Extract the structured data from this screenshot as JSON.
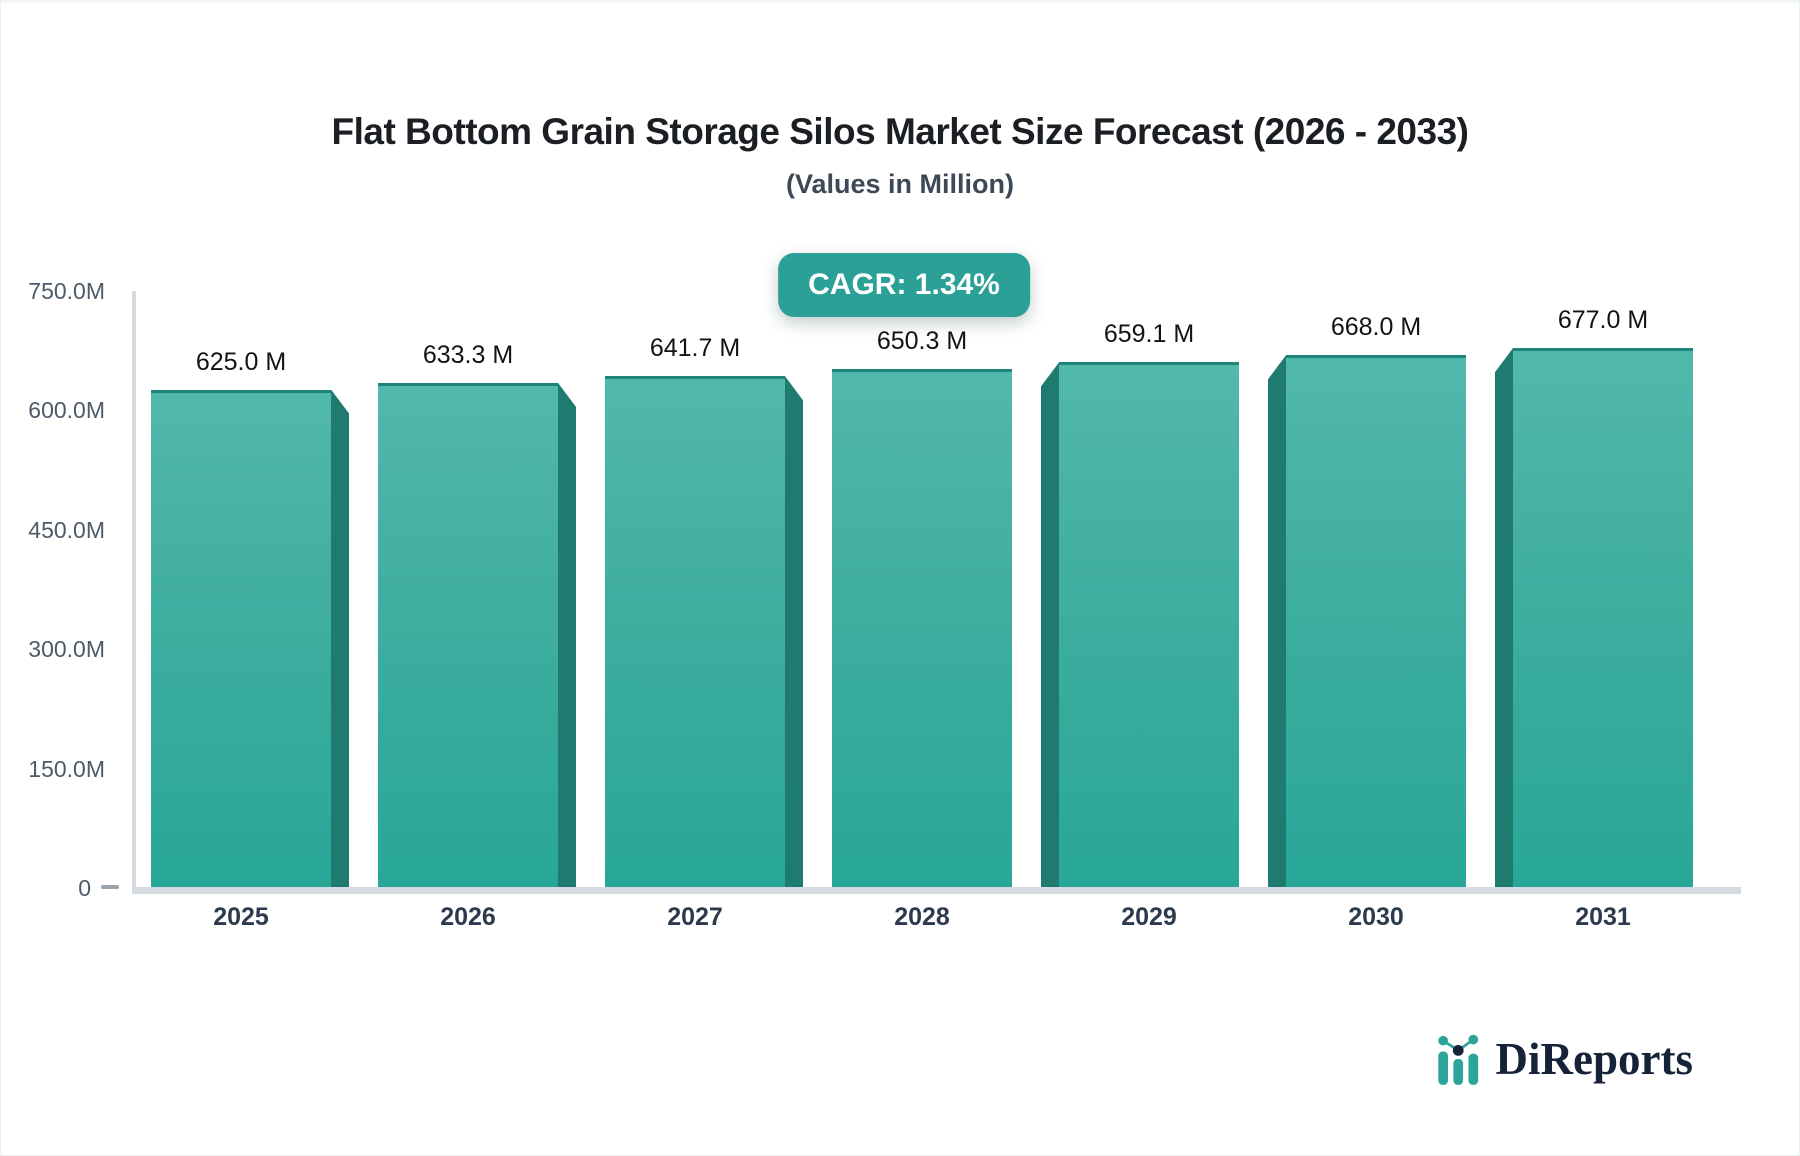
{
  "title": "Flat Bottom Grain Storage Silos Market Size Forecast (2026 - 2033)",
  "subtitle": "(Values in Million)",
  "cagr_label": "CAGR: 1.34%",
  "chart_data": {
    "type": "bar",
    "title": "Flat Bottom Grain Storage Silos Market Size Forecast (2026 - 2033)",
    "subtitle": "(Values in Million)",
    "categories": [
      "2025",
      "2026",
      "2027",
      "2028",
      "2029",
      "2030",
      "2031"
    ],
    "values": [
      625.0,
      633.3,
      641.7,
      650.3,
      659.1,
      668.0,
      677.0
    ],
    "value_labels": [
      "625.0 M",
      "633.3 M",
      "641.7 M",
      "650.3 M",
      "659.1 M",
      "668.0 M",
      "677.0 M"
    ],
    "cagr": "1.34%",
    "xlabel": "",
    "ylabel": "",
    "ylim": [
      0,
      750
    ],
    "ytick_values": [
      750,
      600,
      450,
      300,
      150,
      0
    ],
    "ytick_labels": [
      "750.0M",
      "600.0M",
      "450.0M",
      "300.0M",
      "150.0M",
      "0"
    ],
    "grid": false,
    "legend": false
  },
  "logo": {
    "text": "DiReports"
  },
  "colors": {
    "bar_top": "#52b8ac",
    "bar_bottom": "#28a798",
    "bar_side_face": "#1f7b70",
    "bar_top_edge": "#1d857a",
    "badge_bg": "#2aa096",
    "badge_text": "#ffffff",
    "axis_line": "#d5d9e2",
    "y_label": "#4e5a68",
    "x_label": "#2d3a4d",
    "value_label": "#101418",
    "title_text": "#1b1f24",
    "subtitle_text": "#3e4957",
    "logo_navy": "#152238",
    "logo_teal": "#2ba59a"
  }
}
